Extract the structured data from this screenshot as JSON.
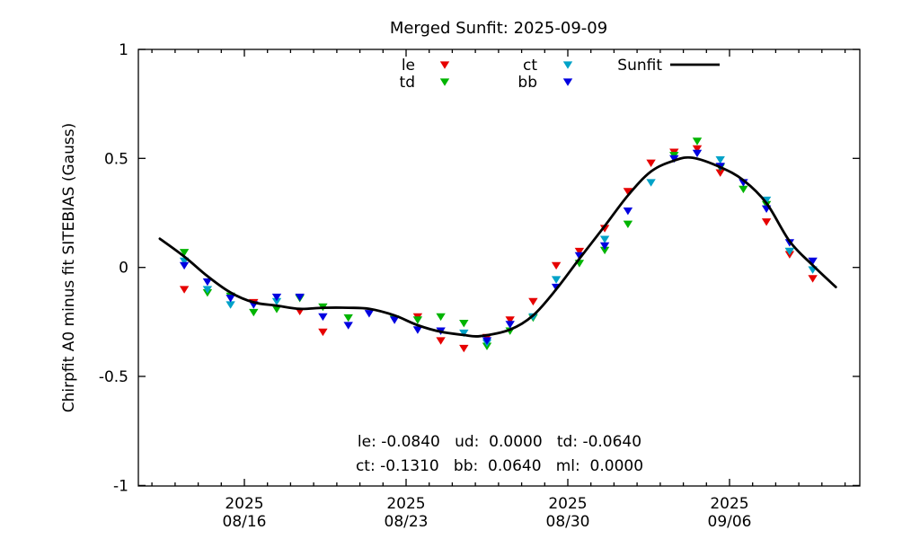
{
  "title": "Merged Sunfit: 2025-09-09",
  "chart_data": {
    "type": "scatter",
    "title": "Merged Sunfit: 2025-09-09",
    "ylabel": "Chirpfit A0 minus fit SITEBIAS (Gauss)",
    "ylim": [
      -1,
      1
    ],
    "grid": false,
    "legend_position": "top-center-inside",
    "y_ticks": [
      {
        "v": -1,
        "label": "-1"
      },
      {
        "v": -0.5,
        "label": "-0.5"
      },
      {
        "v": 0,
        "label": "0"
      },
      {
        "v": 0.5,
        "label": "0.5"
      },
      {
        "v": 1,
        "label": "1"
      }
    ],
    "x_axis": {
      "unit": "days relative to 2025-08-16",
      "minor_tick_day_range": [
        -4,
        26
      ],
      "major_ticks": [
        {
          "day": 0,
          "year": "2025",
          "label": "08/16"
        },
        {
          "day": 7,
          "year": "2025",
          "label": "08/23"
        },
        {
          "day": 14,
          "year": "2025",
          "label": "08/30"
        },
        {
          "day": 21,
          "year": "2025",
          "label": "09/06"
        }
      ]
    },
    "series": [
      {
        "name": "le",
        "color": "#e60000",
        "marker": "triangle-down",
        "points": [
          [
            -2.6,
            -0.1
          ],
          [
            0.4,
            -0.16
          ],
          [
            2.4,
            -0.2
          ],
          [
            3.4,
            -0.295
          ],
          [
            7.5,
            -0.225
          ],
          [
            8.5,
            -0.335
          ],
          [
            9.5,
            -0.37
          ],
          [
            10.5,
            -0.32
          ],
          [
            11.5,
            -0.24
          ],
          [
            12.5,
            -0.155
          ],
          [
            13.5,
            0.01
          ],
          [
            14.5,
            0.075
          ],
          [
            15.6,
            0.18
          ],
          [
            16.6,
            0.35
          ],
          [
            17.6,
            0.48
          ],
          [
            18.6,
            0.53
          ],
          [
            19.6,
            0.545
          ],
          [
            20.6,
            0.435
          ],
          [
            22.6,
            0.21
          ],
          [
            23.6,
            0.06
          ],
          [
            24.6,
            -0.05
          ]
        ]
      },
      {
        "name": "td",
        "color": "#00b400",
        "marker": "triangle-down",
        "points": [
          [
            -2.6,
            0.07
          ],
          [
            -1.6,
            -0.115
          ],
          [
            -0.6,
            -0.13
          ],
          [
            0.4,
            -0.205
          ],
          [
            1.4,
            -0.19
          ],
          [
            2.4,
            -0.14
          ],
          [
            3.4,
            -0.18
          ],
          [
            4.5,
            -0.23
          ],
          [
            6.5,
            -0.235
          ],
          [
            7.5,
            -0.24
          ],
          [
            8.5,
            -0.225
          ],
          [
            9.5,
            -0.255
          ],
          [
            10.5,
            -0.36
          ],
          [
            11.5,
            -0.29
          ],
          [
            12.5,
            -0.23
          ],
          [
            14.5,
            0.02
          ],
          [
            15.6,
            0.08
          ],
          [
            16.6,
            0.2
          ],
          [
            18.6,
            0.515
          ],
          [
            19.6,
            0.58
          ],
          [
            20.6,
            0.46
          ],
          [
            21.6,
            0.36
          ],
          [
            22.6,
            0.29
          ],
          [
            23.6,
            0.075
          ]
        ]
      },
      {
        "name": "ct",
        "color": "#00a2c8",
        "marker": "triangle-down",
        "points": [
          [
            -2.6,
            0.03
          ],
          [
            -1.6,
            -0.1
          ],
          [
            -0.6,
            -0.17
          ],
          [
            1.4,
            -0.155
          ],
          [
            9.5,
            -0.3
          ],
          [
            10.5,
            -0.345
          ],
          [
            12.5,
            -0.225
          ],
          [
            13.5,
            -0.055
          ],
          [
            15.6,
            0.13
          ],
          [
            17.6,
            0.39
          ],
          [
            20.6,
            0.495
          ],
          [
            22.6,
            0.31
          ],
          [
            23.6,
            0.075
          ],
          [
            24.6,
            -0.01
          ]
        ]
      },
      {
        "name": "bb",
        "color": "#0000e0",
        "marker": "triangle-down",
        "points": [
          [
            -2.6,
            0.01
          ],
          [
            -1.6,
            -0.065
          ],
          [
            -0.6,
            -0.14
          ],
          [
            0.4,
            -0.17
          ],
          [
            1.4,
            -0.135
          ],
          [
            2.4,
            -0.135
          ],
          [
            3.4,
            -0.225
          ],
          [
            4.5,
            -0.265
          ],
          [
            5.4,
            -0.21
          ],
          [
            6.5,
            -0.24
          ],
          [
            7.5,
            -0.285
          ],
          [
            8.5,
            -0.29
          ],
          [
            10.5,
            -0.335
          ],
          [
            11.5,
            -0.26
          ],
          [
            13.5,
            -0.09
          ],
          [
            14.5,
            0.055
          ],
          [
            15.6,
            0.1
          ],
          [
            16.6,
            0.26
          ],
          [
            18.6,
            0.5
          ],
          [
            19.6,
            0.525
          ],
          [
            20.6,
            0.465
          ],
          [
            21.6,
            0.39
          ],
          [
            22.6,
            0.27
          ],
          [
            23.6,
            0.115
          ],
          [
            24.6,
            0.03
          ]
        ]
      },
      {
        "name": "Sunfit",
        "color": "#000000",
        "style": "line",
        "points": [
          [
            -3.66,
            0.132
          ],
          [
            -2.6,
            0.05
          ],
          [
            -1.6,
            -0.04
          ],
          [
            -0.6,
            -0.115
          ],
          [
            0.4,
            -0.16
          ],
          [
            1.4,
            -0.175
          ],
          [
            2.4,
            -0.19
          ],
          [
            3.4,
            -0.185
          ],
          [
            4.5,
            -0.185
          ],
          [
            5.4,
            -0.19
          ],
          [
            6.5,
            -0.22
          ],
          [
            7.5,
            -0.265
          ],
          [
            8.5,
            -0.295
          ],
          [
            9.5,
            -0.31
          ],
          [
            10.2,
            -0.315
          ],
          [
            11.5,
            -0.285
          ],
          [
            12.5,
            -0.22
          ],
          [
            13.5,
            -0.1
          ],
          [
            14.5,
            0.04
          ],
          [
            15.6,
            0.19
          ],
          [
            16.6,
            0.33
          ],
          [
            17.6,
            0.44
          ],
          [
            18.6,
            0.49
          ],
          [
            19.4,
            0.503
          ],
          [
            20.6,
            0.46
          ],
          [
            21.6,
            0.4
          ],
          [
            22.6,
            0.295
          ],
          [
            23.6,
            0.12
          ],
          [
            24.6,
            0.01
          ],
          [
            25.6,
            -0.09
          ]
        ]
      }
    ],
    "annotations": {
      "line1": "le: -0.0840   ud:  0.0000   td: -0.0640",
      "line2": "ct: -0.1310   bb:  0.0640   ml:  0.0000"
    }
  }
}
